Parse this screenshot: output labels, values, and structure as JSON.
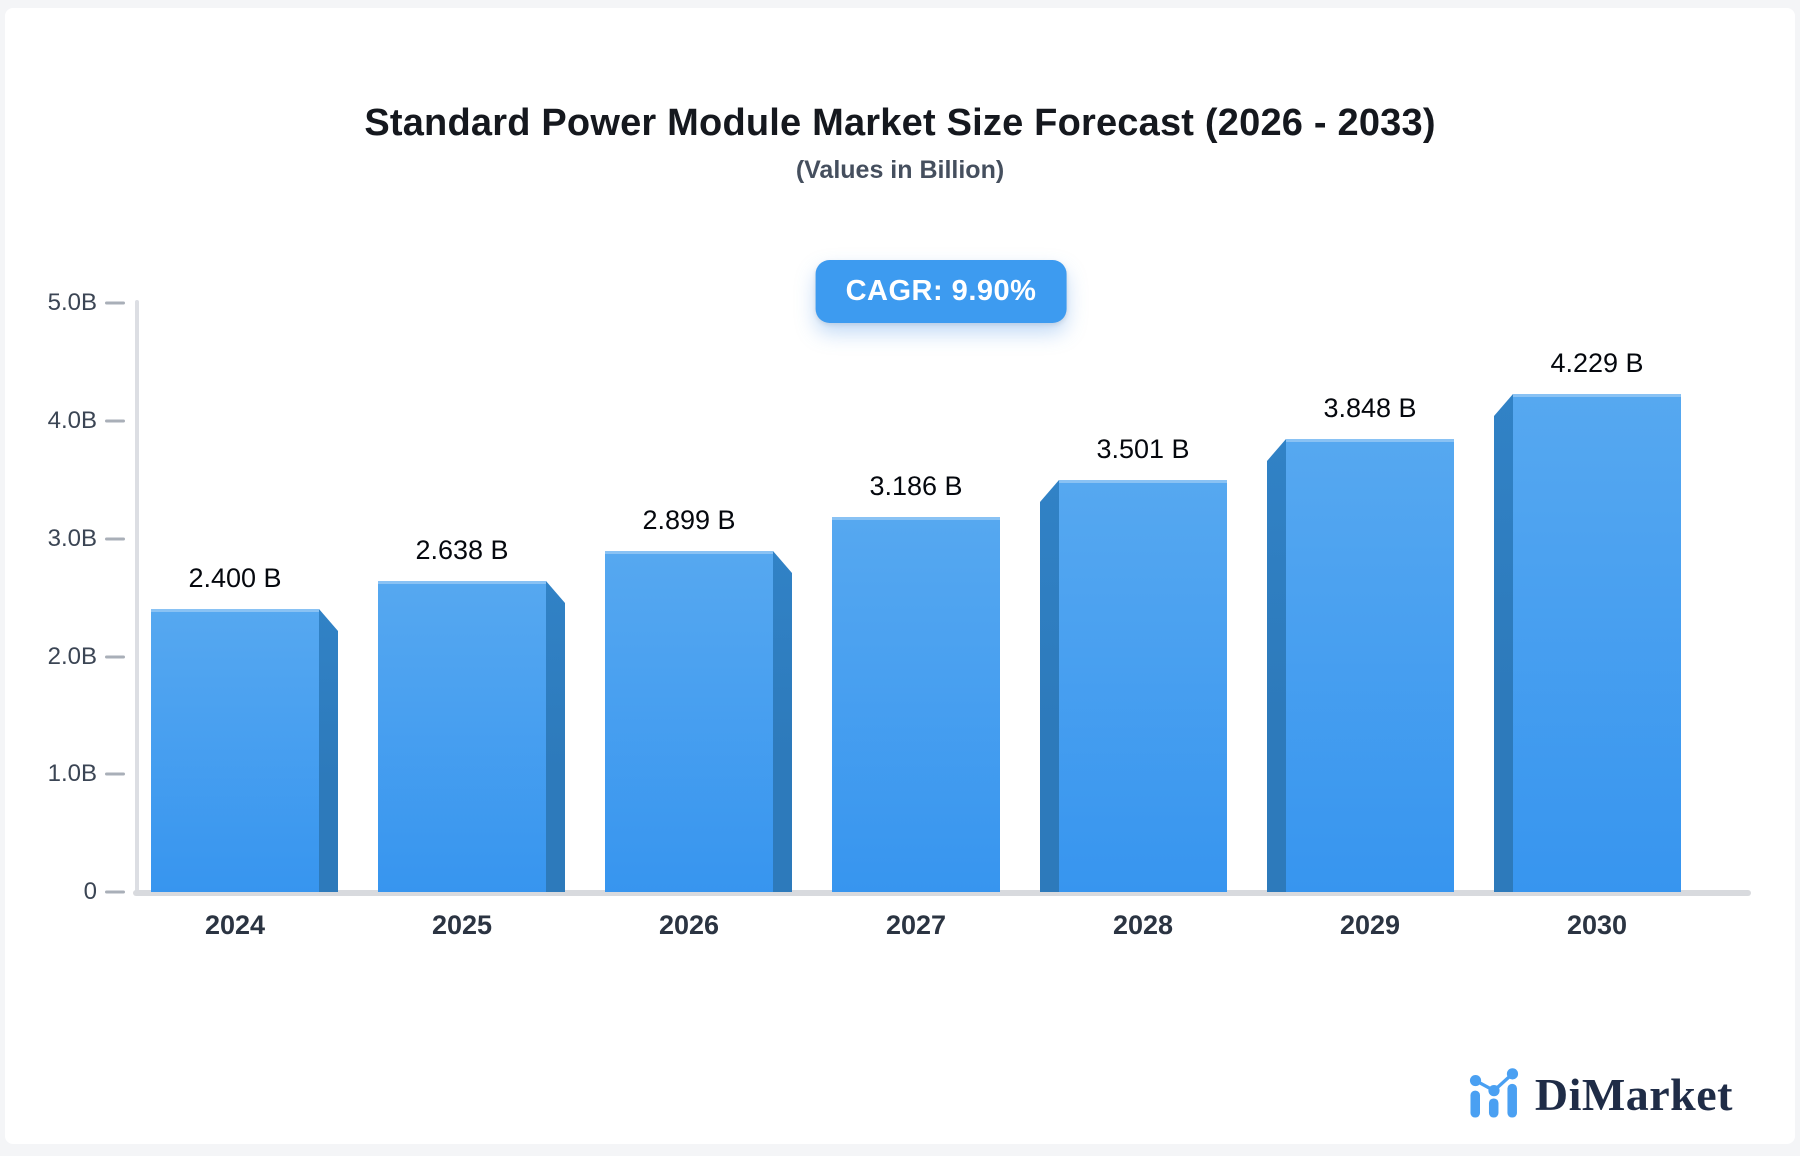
{
  "chart_data": {
    "type": "bar",
    "title": "Standard Power Module Market Size Forecast (2026 - 2033)",
    "subtitle": "(Values in Billion)",
    "cagr_label": "CAGR: 9.90%",
    "categories": [
      "2024",
      "2025",
      "2026",
      "2027",
      "2028",
      "2029",
      "2030"
    ],
    "values": [
      2.4,
      2.638,
      2.899,
      3.186,
      3.501,
      3.848,
      4.229
    ],
    "value_labels": [
      "2.400 B",
      "2.638 B",
      "2.899 B",
      "3.186 B",
      "3.501 B",
      "3.848 B",
      "4.229 B"
    ],
    "ylabel": "",
    "xlabel": "",
    "ylim": [
      0,
      5
    ],
    "yticks": [
      {
        "value": 5,
        "label": "5.0B"
      },
      {
        "value": 4,
        "label": "4.0B"
      },
      {
        "value": 3,
        "label": "3.0B"
      },
      {
        "value": 2,
        "label": "2.0B"
      },
      {
        "value": 1,
        "label": "1.0B"
      },
      {
        "value": 0,
        "label": "0"
      }
    ],
    "grid": "off",
    "legend": "none",
    "style": "3d-perspective-bars"
  },
  "branding": {
    "logo_text": "DiMarket"
  },
  "colors": {
    "badge_bg": "#3d9bf0",
    "bar_face_top": "#56a8f0",
    "bar_face_bottom": "#3795ef",
    "bar_side": "#2d7abb",
    "logo_blue": "#4aa0f2",
    "logo_navy": "#1f2c47"
  }
}
